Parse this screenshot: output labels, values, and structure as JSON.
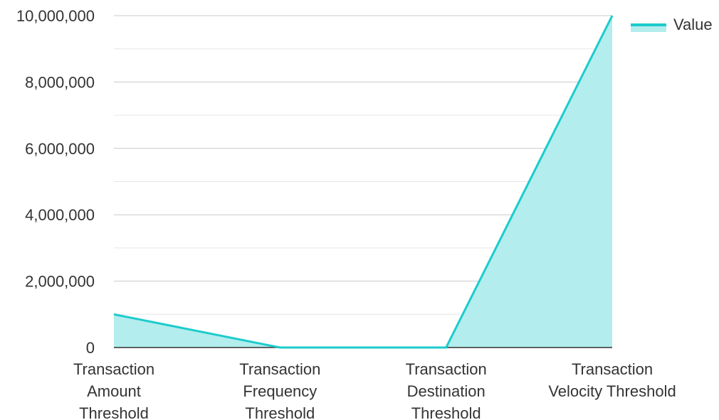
{
  "chart_data": {
    "type": "area",
    "categories": [
      [
        "Transaction",
        "Amount",
        "Threshold"
      ],
      [
        "Transaction",
        "Frequency",
        "Threshold"
      ],
      [
        "Transaction",
        "Destination",
        "Threshold"
      ],
      [
        "Transaction",
        "Velocity Threshold"
      ]
    ],
    "series": [
      {
        "name": "Value",
        "values": [
          1000000,
          0,
          0,
          10000000
        ]
      }
    ],
    "y_ticks": [
      "0",
      "2,000,000",
      "4,000,000",
      "6,000,000",
      "8,000,000",
      "10,000,000"
    ],
    "ylim": [
      0,
      10000000
    ],
    "legend_position": "top-right",
    "grid": true,
    "colors": {
      "line": "#1ccbcc",
      "fill": "#b3eded",
      "grid_major": "#c8c8c8",
      "grid_minor": "#e6e6e6",
      "axis": "#333333"
    }
  }
}
